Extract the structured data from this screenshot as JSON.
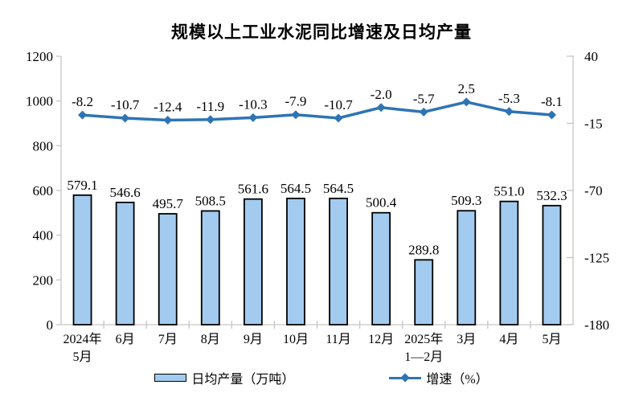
{
  "title": "规模以上工业水泥同比增速及日均产量",
  "chart_data": {
    "type": "bar+line",
    "title": "规模以上工业水泥同比增速及日均产量",
    "categories": [
      [
        "2024年",
        "5月"
      ],
      [
        "6月"
      ],
      [
        "7月"
      ],
      [
        "8月"
      ],
      [
        "9月"
      ],
      [
        "10月"
      ],
      [
        "11月"
      ],
      [
        "12月"
      ],
      [
        "2025年",
        "1—2月"
      ],
      [
        "3月"
      ],
      [
        "4月"
      ],
      [
        "5月"
      ]
    ],
    "series": [
      {
        "name": "日均产量（万吨）",
        "type": "bar",
        "axis": "left",
        "color": "#A3CBEF",
        "border_color": "#000000",
        "values": [
          579.1,
          546.6,
          495.7,
          508.5,
          561.6,
          564.5,
          564.5,
          500.4,
          289.8,
          509.3,
          551.0,
          532.3
        ]
      },
      {
        "name": "增速（%）",
        "type": "line",
        "axis": "right",
        "color": "#2E74B5",
        "marker": "diamond",
        "values": [
          -8.2,
          -10.7,
          -12.4,
          -11.9,
          -10.3,
          -7.9,
          -10.7,
          -2.0,
          -5.7,
          2.5,
          -5.3,
          -8.1
        ]
      }
    ],
    "left_axis": {
      "min": 0,
      "max": 1200,
      "ticks": [
        0,
        200,
        400,
        600,
        800,
        1000,
        1200
      ]
    },
    "right_axis": {
      "min": -180,
      "max": 40,
      "ticks": [
        -180,
        -125,
        -70,
        -15,
        40
      ]
    },
    "grid": false,
    "legend_position": "bottom",
    "axis_color": "#C6C6C6"
  }
}
